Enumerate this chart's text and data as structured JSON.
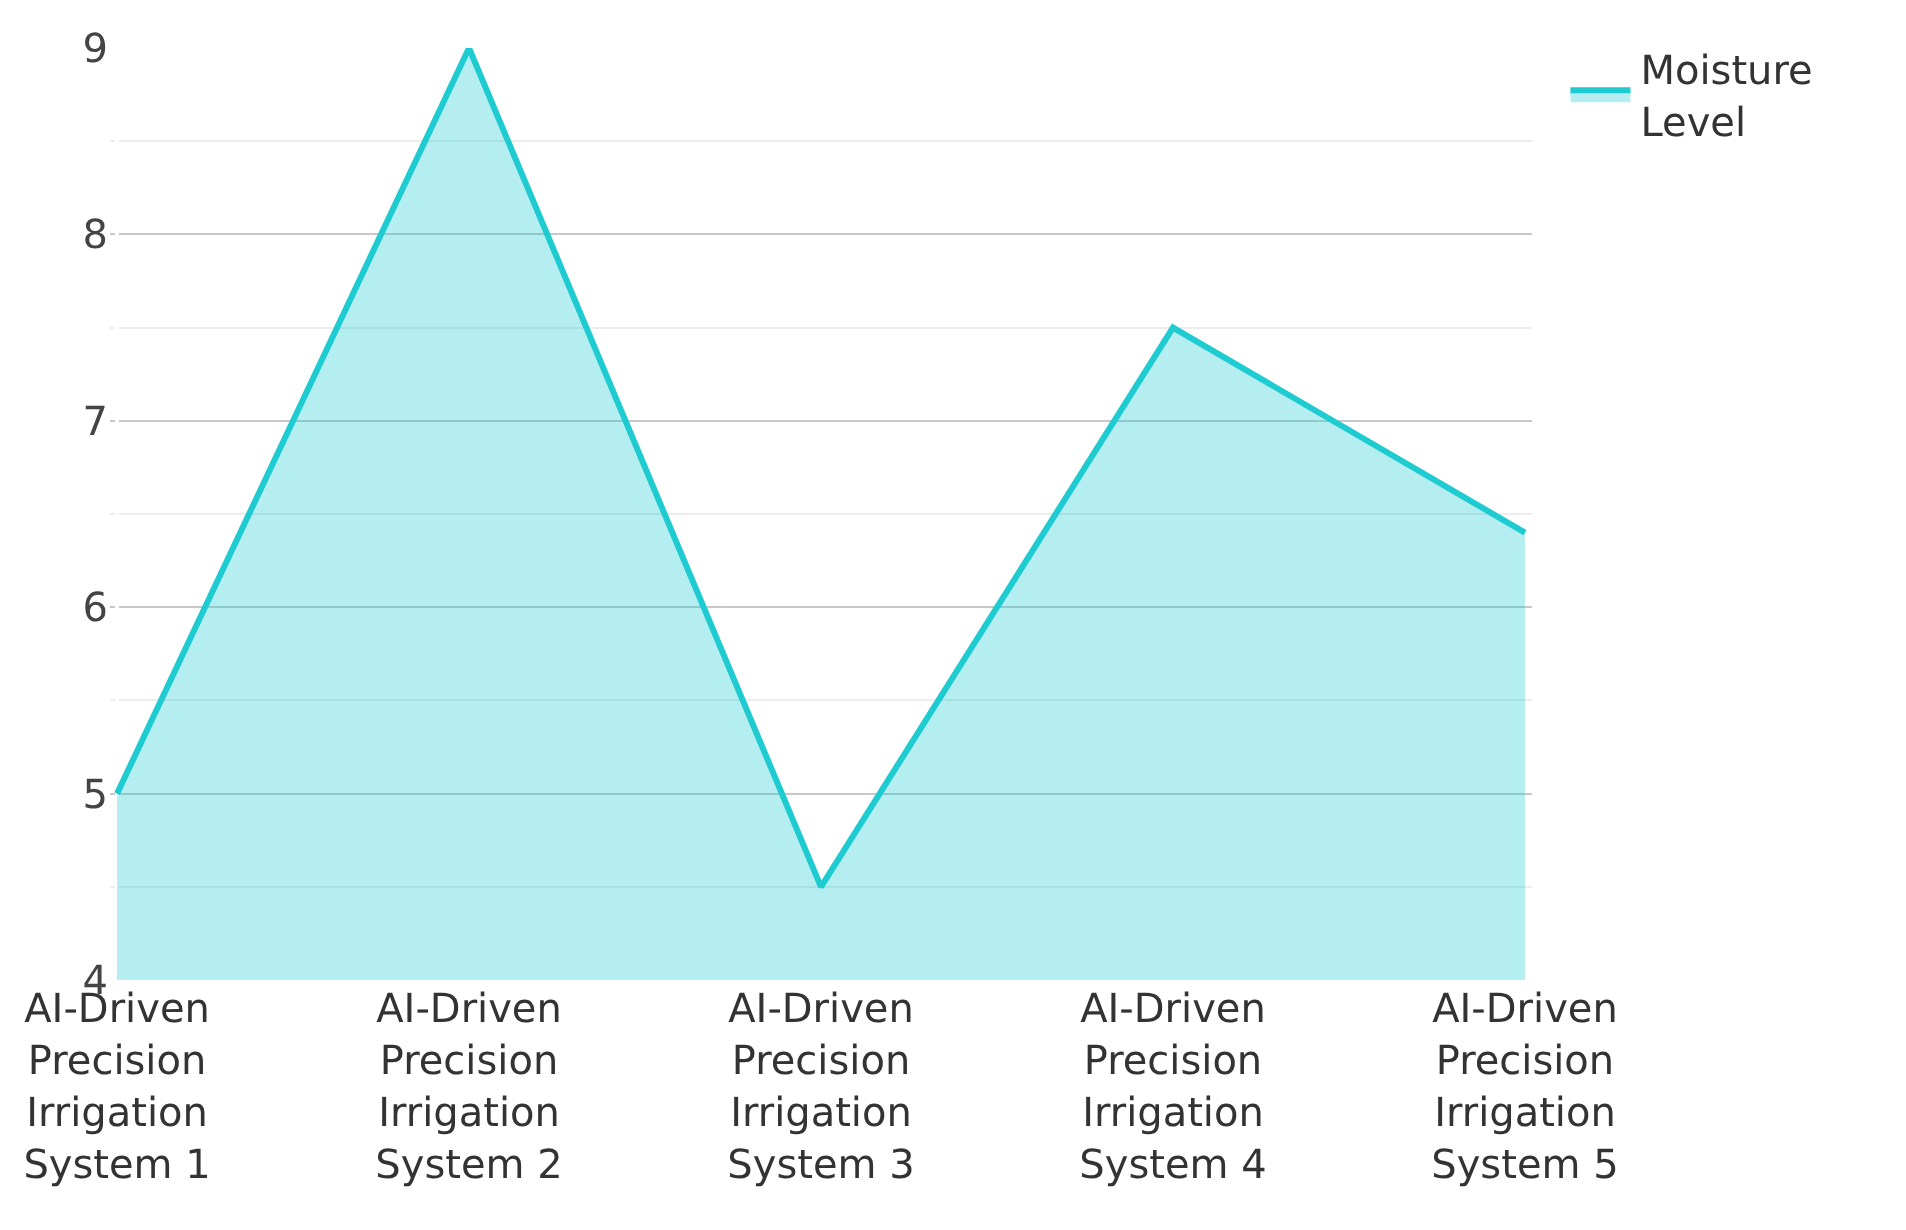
{
  "chart_data": {
    "type": "area",
    "categories": [
      "AI-Driven Precision Irrigation System 1",
      "AI-Driven Precision Irrigation System 2",
      "AI-Driven Precision Irrigation System 3",
      "AI-Driven Precision Irrigation System 4",
      "AI-Driven Precision Irrigation System 5"
    ],
    "series": [
      {
        "name": "Moisture Level",
        "color": "#1ecbd1",
        "values": [
          5,
          9,
          4.5,
          7.5,
          6.4
        ]
      }
    ],
    "ylim": [
      4,
      9
    ],
    "yticks": [
      4,
      5,
      6,
      7,
      8,
      9
    ],
    "grid": "y",
    "legend": "top right"
  }
}
